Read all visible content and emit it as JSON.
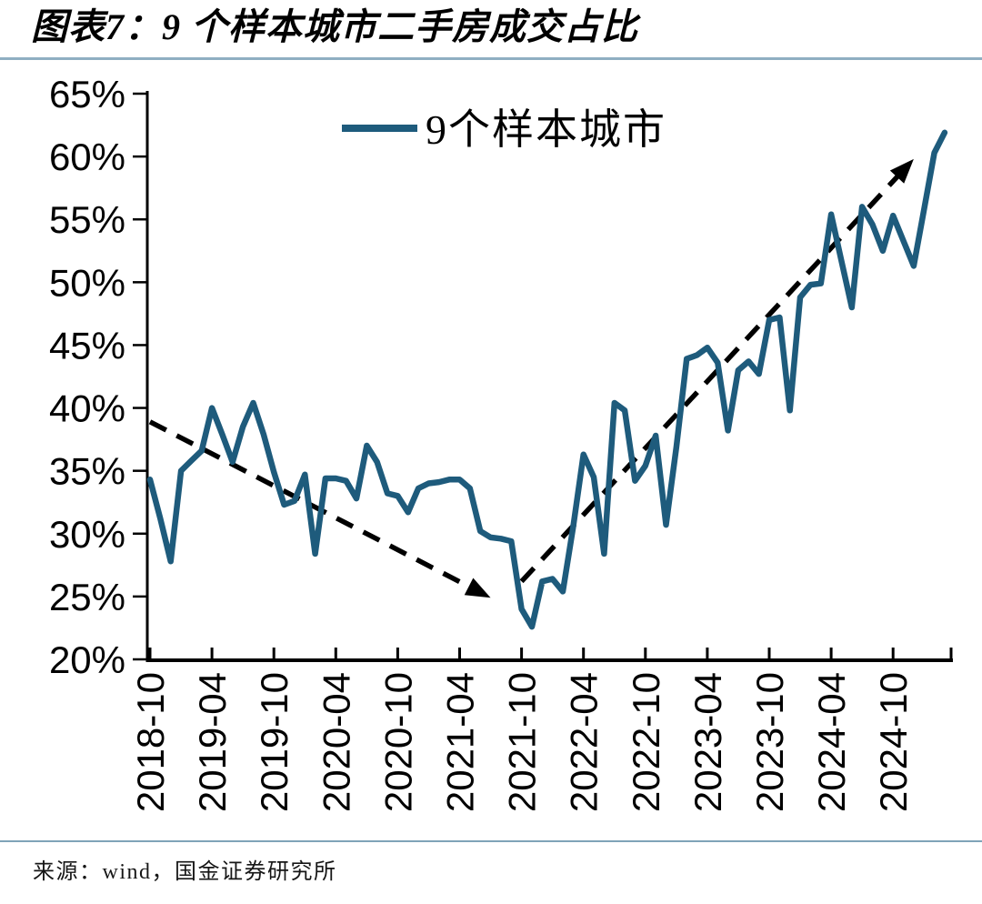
{
  "title": "图表7：9 个样本城市二手房成交占比",
  "source": "来源：wind，国金证券研究所",
  "legend": {
    "label": "9个样本城市"
  },
  "colors": {
    "series": "#1E5B7C",
    "trend_arrow": "#000000",
    "axis": "#000000",
    "rule_top": "#8FAFC2",
    "rule_bottom": "#7FA3B8"
  },
  "chart_data": {
    "type": "line",
    "title": "9个样本城市二手房成交占比",
    "series_name": "9个样本城市",
    "xlabel": "",
    "ylabel": "",
    "ylim": [
      20,
      65
    ],
    "grid": false,
    "legend_position": "top-center",
    "y_ticks": [
      "65%",
      "60%",
      "55%",
      "50%",
      "45%",
      "40%",
      "35%",
      "30%",
      "25%",
      "20%"
    ],
    "x_tick_labels": [
      "2018-10",
      "2019-04",
      "2019-10",
      "2020-04",
      "2020-10",
      "2021-04",
      "2021-10",
      "2022-04",
      "2022-10",
      "2023-04",
      "2023-10",
      "2024-04",
      "2024-10"
    ],
    "x": [
      "2018-10",
      "2018-11",
      "2018-12",
      "2019-01",
      "2019-02",
      "2019-03",
      "2019-04",
      "2019-05",
      "2019-06",
      "2019-07",
      "2019-08",
      "2019-09",
      "2019-10",
      "2019-11",
      "2019-12",
      "2020-01",
      "2020-02",
      "2020-03",
      "2020-04",
      "2020-05",
      "2020-06",
      "2020-07",
      "2020-08",
      "2020-09",
      "2020-10",
      "2020-11",
      "2020-12",
      "2021-01",
      "2021-02",
      "2021-03",
      "2021-04",
      "2021-05",
      "2021-06",
      "2021-07",
      "2021-08",
      "2021-09",
      "2021-10",
      "2021-11",
      "2021-12",
      "2022-01",
      "2022-02",
      "2022-03",
      "2022-04",
      "2022-05",
      "2022-06",
      "2022-07",
      "2022-08",
      "2022-09",
      "2022-10",
      "2022-11",
      "2022-12",
      "2023-01",
      "2023-02",
      "2023-03",
      "2023-04",
      "2023-05",
      "2023-06",
      "2023-07",
      "2023-08",
      "2023-09",
      "2023-10",
      "2023-11",
      "2023-12",
      "2024-01",
      "2024-02",
      "2024-03",
      "2024-04",
      "2024-05",
      "2024-06",
      "2024-07",
      "2024-08",
      "2024-09",
      "2024-10",
      "2024-11",
      "2024-12",
      "2025-01",
      "2025-02",
      "2025-03"
    ],
    "values": [
      34.3,
      31.2,
      27.8,
      35.0,
      35.8,
      36.6,
      40.0,
      37.9,
      35.7,
      38.5,
      40.4,
      37.9,
      34.9,
      32.3,
      32.6,
      34.7,
      28.4,
      34.4,
      34.4,
      34.2,
      32.8,
      37.0,
      35.7,
      33.2,
      33.0,
      31.7,
      33.6,
      34.0,
      34.1,
      34.3,
      34.3,
      33.6,
      30.2,
      29.7,
      29.6,
      29.4,
      24.0,
      22.6,
      26.2,
      26.4,
      25.4,
      30.5,
      36.3,
      34.5,
      28.4,
      40.4,
      39.8,
      34.2,
      35.4,
      37.8,
      30.7,
      36.9,
      43.9,
      44.2,
      44.8,
      43.6,
      38.2,
      43.0,
      43.7,
      42.7,
      47.0,
      47.2,
      39.8,
      48.8,
      49.8,
      49.9,
      55.4,
      51.7,
      48.0,
      56.0,
      54.6,
      52.5,
      55.3,
      53.3,
      51.3,
      55.8,
      60.3,
      61.9
    ],
    "annotations": [
      {
        "type": "trend-arrow",
        "style": "dashed",
        "direction": "down",
        "x1": "2018-10",
        "y1": 38.9,
        "x2": "2021-07",
        "y2": 24.9
      },
      {
        "type": "trend-arrow",
        "style": "dashed",
        "direction": "up",
        "x1": "2021-10",
        "y1": 26.2,
        "x2": "2024-12",
        "y2": 59.8
      }
    ]
  }
}
